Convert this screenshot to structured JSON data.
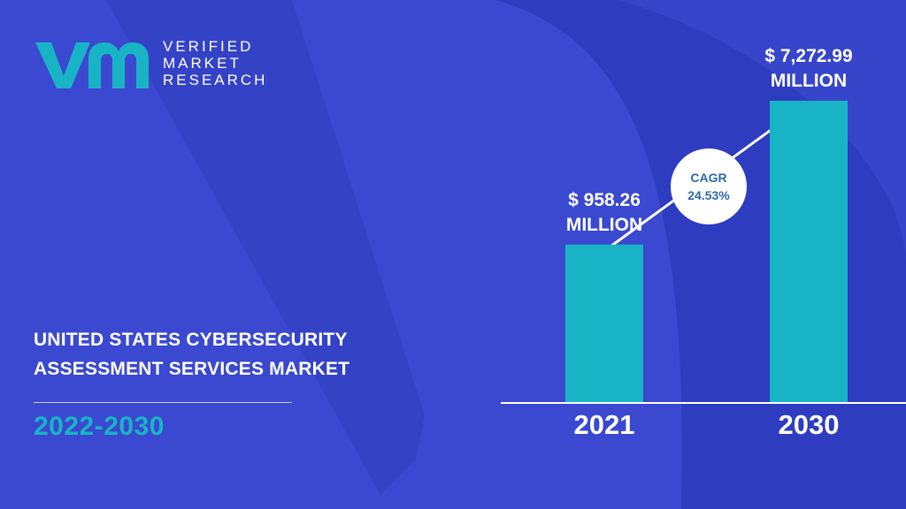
{
  "brand": {
    "name_lines": [
      "VERIFIED",
      "MARKET",
      "RESEARCH"
    ],
    "colors": {
      "teal": "#19b3c6",
      "background": "#3a49cf",
      "text": "#ffffff"
    }
  },
  "title_lines": [
    "UNITED STATES CYBERSECURITY",
    "ASSESSMENT  SERVICES MARKET"
  ],
  "period": "2022-2030",
  "cagr": {
    "label": "CAGR",
    "value": "24.53%"
  },
  "chart_data": {
    "type": "bar",
    "categories": [
      "2021",
      "2030"
    ],
    "values": [
      958.26,
      7272.99
    ],
    "value_labels": [
      [
        "$ 958.26",
        "MILLION"
      ],
      [
        "$ 7,272.99",
        "MILLION"
      ]
    ],
    "bar_color": "#19b3c6",
    "ylim": [
      0,
      8000
    ],
    "grid": false
  }
}
